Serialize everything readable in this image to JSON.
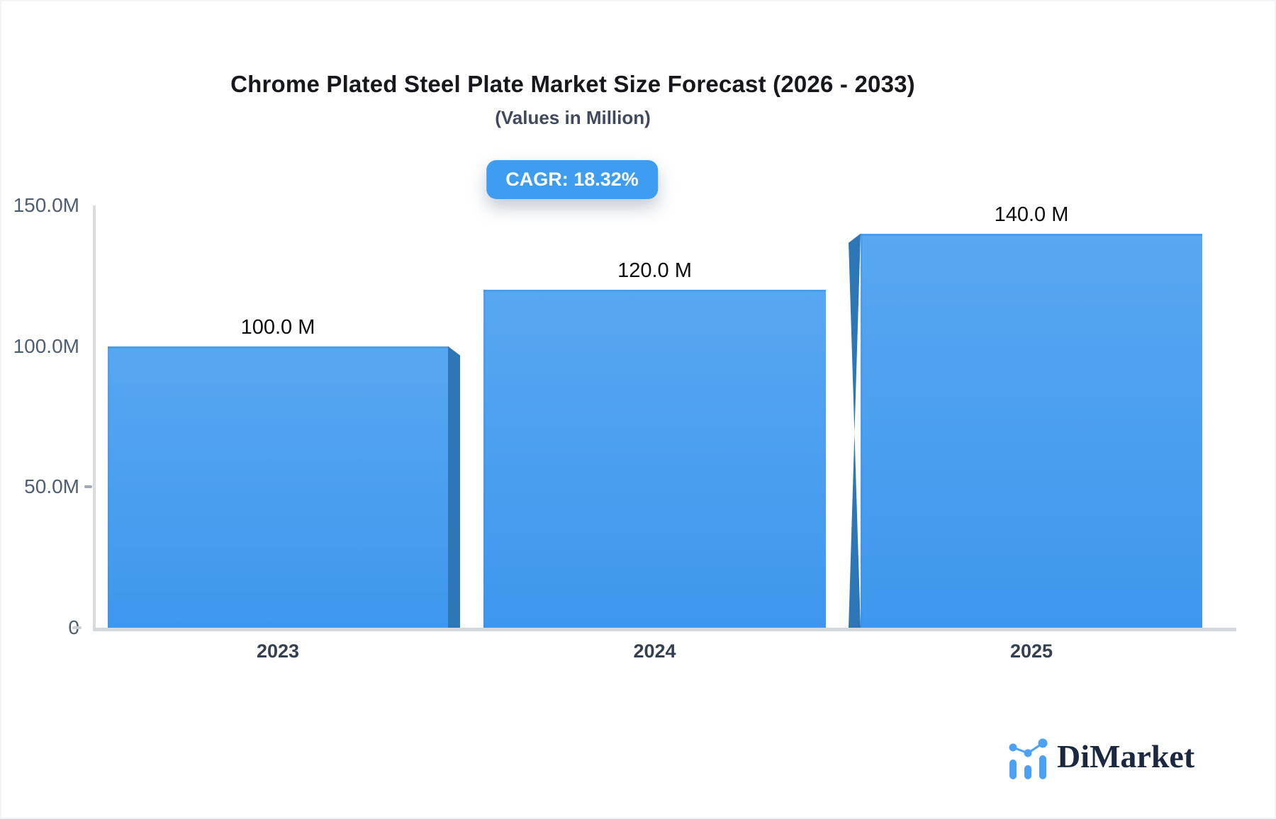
{
  "chart_data": {
    "type": "bar",
    "title": "Chrome Plated Steel Plate Market Size Forecast (2026 - 2033)",
    "subtitle": "(Values in Million)",
    "cagr_badge": "CAGR: 18.32%",
    "categories": [
      "2023",
      "2024",
      "2025"
    ],
    "values": [
      100,
      120,
      140
    ],
    "value_labels": [
      "100.0 M",
      "120.0 M",
      "140.0 M"
    ],
    "unit": "M",
    "ylim": [
      0,
      150
    ],
    "y_ticks": [
      {
        "label": "150.0M",
        "value": 150
      },
      {
        "label": "100.0M",
        "value": 100
      },
      {
        "label": "50.0M",
        "value": 50
      },
      {
        "label": "0",
        "value": 0
      }
    ],
    "grid": "off",
    "legend": "none"
  },
  "branding": {
    "logo_text": "DiMarket",
    "logo_icon": "bar-chart-sparkline-icon"
  },
  "colors": {
    "badge_bg": "#3f9df1",
    "bar_top": "#58a7f1",
    "bar_bottom": "#3e97ee",
    "bar_edge": "#3a8cd9",
    "bar_side": "#2d77b6",
    "axis_line": "#d8dbe2",
    "baseline": "#d3d7de",
    "tick_dash_50": "#9fa8b3",
    "tick_dash_0": "#c9ced6",
    "logo_blue": "#4ba1f6"
  }
}
